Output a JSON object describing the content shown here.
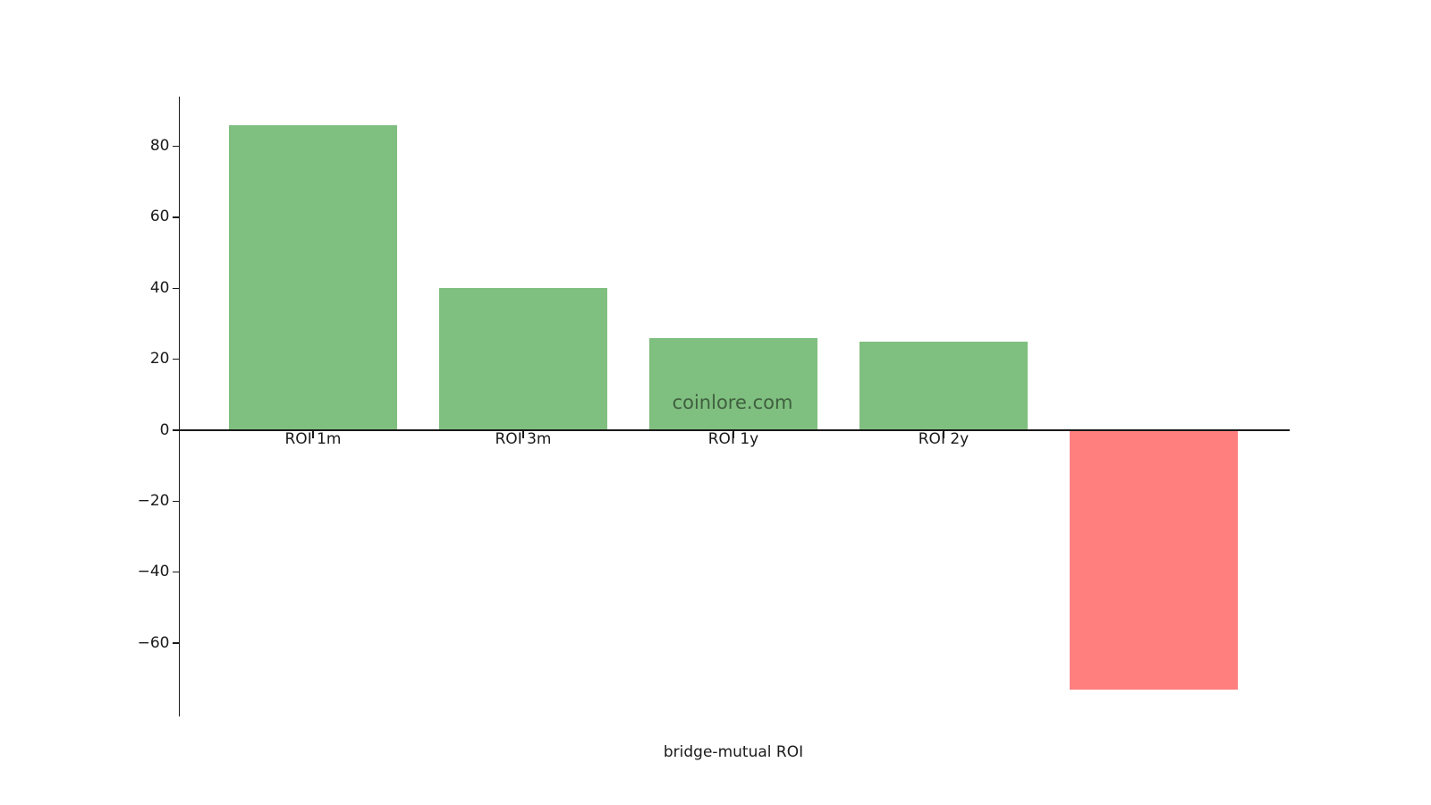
{
  "watermark": "coinlore.com",
  "footer_title": "bridge-mutual ROI",
  "colors": {
    "positive_bar": "#7fbf7f",
    "negative_bar": "#ff7f7f",
    "axis": "#1a1a1a",
    "watermark": "rgba(0,0,0,0.5)"
  },
  "chart_data": {
    "type": "bar",
    "title": "bridge-mutual ROI",
    "categories": [
      "ROI 1m",
      "ROI 3m",
      "ROI 1y",
      "ROI 2y",
      ""
    ],
    "values": [
      86,
      40,
      26,
      25,
      -73
    ],
    "bar_colors": [
      "positive",
      "positive",
      "positive",
      "positive",
      "negative"
    ],
    "yticks": [
      80,
      60,
      40,
      20,
      0,
      -20,
      -40,
      -60
    ],
    "ytick_labels": [
      "80",
      "60",
      "40",
      "20",
      "0",
      "−20",
      "−40",
      "−60"
    ],
    "ylim": [
      -81,
      94
    ],
    "xlabel": "bridge-mutual ROI",
    "ylabel": "",
    "grid": false,
    "legend": null,
    "watermark": "coinlore.com"
  }
}
